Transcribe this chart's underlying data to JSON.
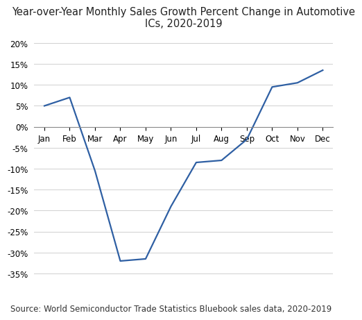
{
  "title": "Year-over-Year Monthly Sales Growth Percent Change in Automotive\nICs, 2020-2019",
  "months": [
    "Jan",
    "Feb",
    "Mar",
    "Apr",
    "May",
    "Jun",
    "Jul",
    "Aug",
    "Sep",
    "Oct",
    "Nov",
    "Dec"
  ],
  "values": [
    5.0,
    7.0,
    -10.5,
    -32.0,
    -31.5,
    -19.0,
    -8.5,
    -8.0,
    -3.0,
    9.5,
    10.5,
    13.5
  ],
  "line_color": "#2e5fa3",
  "line_width": 1.6,
  "ylim": [
    -37,
    22
  ],
  "yticks": [
    -35,
    -30,
    -25,
    -20,
    -15,
    -10,
    -5,
    0,
    5,
    10,
    15,
    20
  ],
  "ytick_labels": [
    "-35%",
    "-30%",
    "-25%",
    "-20%",
    "-15%",
    "-10%",
    "-5%",
    "0%",
    "5%",
    "10%",
    "15%",
    "20%"
  ],
  "source_text": "Source: World Semiconductor Trade Statistics Bluebook sales data, 2020-2019",
  "bg_color": "#ffffff",
  "grid_color": "#d0d0d0",
  "title_fontsize": 10.5,
  "tick_fontsize": 8.5,
  "source_fontsize": 8.5
}
